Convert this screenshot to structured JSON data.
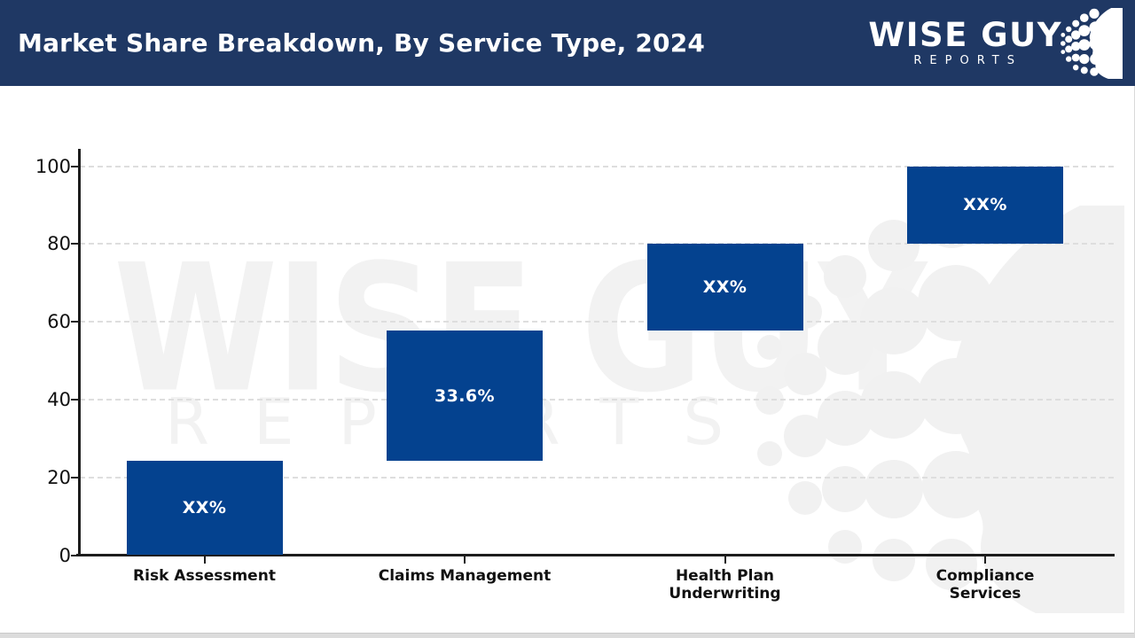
{
  "header": {
    "title": "Market Share Breakdown, By Service Type, 2024",
    "logo": {
      "line1": "WISE GUY",
      "line2": "REPORTS"
    }
  },
  "watermark": {
    "line1": "WISE GUY",
    "line2": "REPORTS"
  },
  "colors": {
    "header_bg": "#1F3864",
    "bar": "#04428F",
    "grid": "#DEDEDE",
    "axis": "#1D1D1D",
    "tick_text": "#111111",
    "bar_label_text": "#FFFFFF",
    "watermark": "#F2F2F2"
  },
  "chart_data": {
    "type": "bar",
    "subtype": "waterfall",
    "title": "Market Share Breakdown, By Service Type, 2024",
    "xlabel": "",
    "ylabel": "",
    "ylim": [
      0,
      100
    ],
    "yticks": [
      0,
      20,
      40,
      60,
      80,
      100
    ],
    "grid": "horizontal-dashed",
    "legend": "none",
    "categories": [
      "Risk Assessment",
      "Claims Management",
      "Health Plan\nUnderwriting",
      "Compliance\nServices"
    ],
    "segments": [
      {
        "category": "Risk Assessment",
        "start": 0,
        "end": 24.2,
        "label": "XX%"
      },
      {
        "category": "Claims Management",
        "start": 24.2,
        "end": 57.8,
        "label": "33.6%",
        "value": 33.6
      },
      {
        "category": "Health Plan Underwriting",
        "start": 57.8,
        "end": 80.1,
        "label": "XX%"
      },
      {
        "category": "Compliance Services",
        "start": 80.1,
        "end": 100,
        "label": "XX%"
      }
    ]
  }
}
